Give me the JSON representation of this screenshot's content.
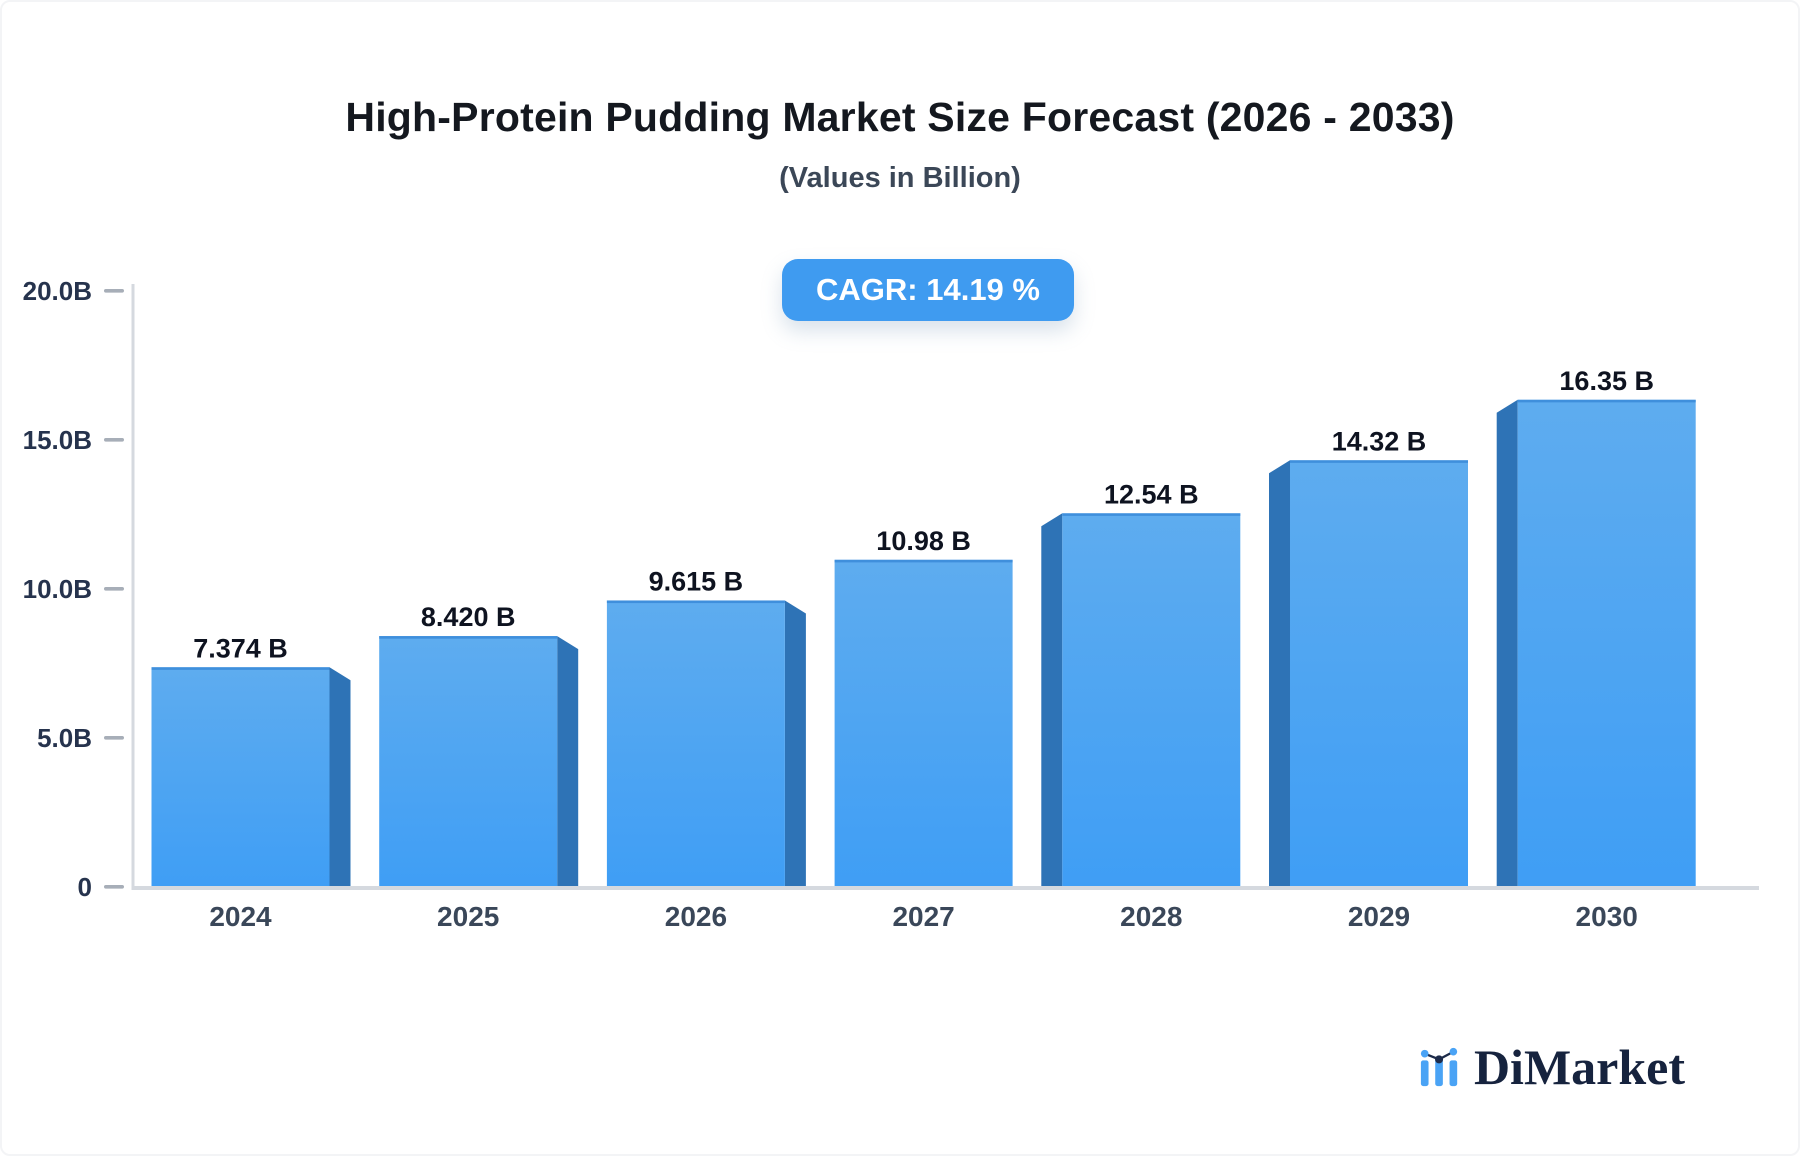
{
  "header": {
    "title": "High-Protein Pudding Market Size Forecast (2026 - 2033)",
    "subtitle": "(Values in Billion)"
  },
  "badge": {
    "label": "CAGR: 14.19 %"
  },
  "chart_data": {
    "type": "bar",
    "title": "High-Protein Pudding Market Size Forecast (2026 - 2033)",
    "subtitle": "(Values in Billion)",
    "cagr_label": "CAGR: 14.19 %",
    "categories": [
      "2024",
      "2025",
      "2026",
      "2027",
      "2028",
      "2029",
      "2030"
    ],
    "values": [
      7.374,
      8.42,
      9.615,
      10.98,
      12.54,
      14.32,
      16.35
    ],
    "value_labels": [
      "7.374 B",
      "8.420 B",
      "9.615 B",
      "10.98 B",
      "12.54 B",
      "14.32 B",
      "16.35 B"
    ],
    "xlabel": "",
    "ylabel": "",
    "ylim": [
      0,
      20
    ],
    "y_ticks": [
      0,
      5,
      10,
      15,
      20
    ],
    "y_tick_labels": [
      "0",
      "5.0B",
      "10.0B",
      "15.0B",
      "20.0B"
    ],
    "grid": false,
    "legend_position": "none",
    "bar_style": "3d-beveled"
  },
  "logo": {
    "text": "DiMarket"
  },
  "colors": {
    "badge_bg": "#3F9BF0",
    "bar_face_top": "#5EACEF",
    "bar_face_bottom": "#3F9EF5",
    "bar_top_edge": "#3C8CD9",
    "bar_side": "#2E73B6",
    "axis_line": "#D5D9DF",
    "tick_dash": "#A7AEB8",
    "y_label": "#26334D",
    "x_label": "#3A4759",
    "value_label": "#0E1320",
    "logo_navy": "#1D2B4A",
    "logo_blue": "#4AA3F5"
  }
}
